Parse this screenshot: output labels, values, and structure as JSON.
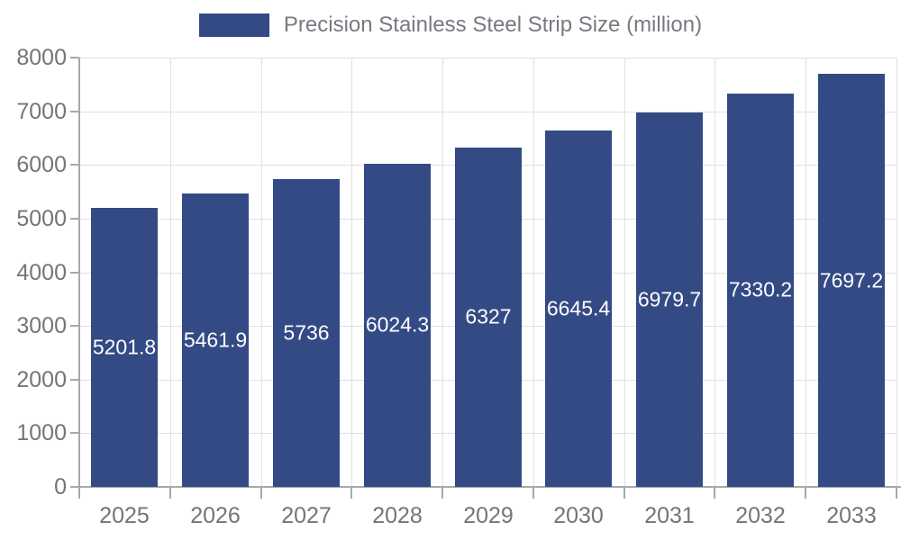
{
  "chart_data": {
    "type": "bar",
    "title": "Precision Stainless Steel Strip Size (million)",
    "legend_entries": [
      "Precision Stainless Steel Strip Size (million)"
    ],
    "legend_position": "top",
    "categories": [
      "2025",
      "2026",
      "2027",
      "2028",
      "2029",
      "2030",
      "2031",
      "2032",
      "2033"
    ],
    "series": [
      {
        "name": "Precision Stainless Steel Strip Size (million)",
        "values": [
          5201.8,
          5461.9,
          5736,
          6024.3,
          6327,
          6645.4,
          6979.7,
          7330.2,
          7697.2
        ]
      }
    ],
    "data_labels": [
      "5201.8",
      "5461.9",
      "5736",
      "6024.3",
      "6327",
      "6645.4",
      "6979.7",
      "7330.2",
      "7697.2"
    ],
    "xlabel": "",
    "ylabel": "",
    "ylim": [
      0,
      8000
    ],
    "yticks": [
      0,
      1000,
      2000,
      3000,
      4000,
      5000,
      6000,
      7000,
      8000
    ],
    "grid": true,
    "colors": {
      "bar": "#344a85",
      "bar_label_text": "#ffffff",
      "axis_text": "#757575",
      "legend_text": "#767a80",
      "gridline": "#e0e0e0",
      "axis_line": "#a8a8a8",
      "background": "#ffffff"
    }
  }
}
